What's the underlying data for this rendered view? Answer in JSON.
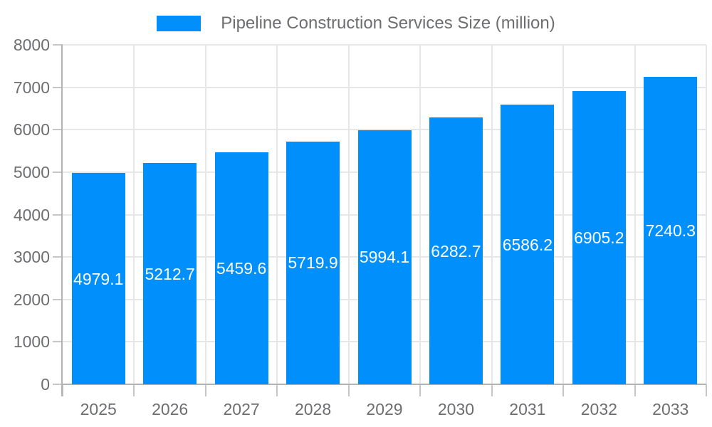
{
  "legend": {
    "label": "Pipeline Construction Services Size (million)"
  },
  "chart_data": {
    "type": "bar",
    "title": "Pipeline Construction Services Size (million)",
    "series_name": "Pipeline Construction Services Size (million)",
    "categories": [
      "2025",
      "2026",
      "2027",
      "2028",
      "2029",
      "2030",
      "2031",
      "2032",
      "2033"
    ],
    "values": [
      4979.1,
      5212.7,
      5459.6,
      5719.9,
      5994.1,
      6282.7,
      6586.2,
      6905.2,
      7240.3
    ],
    "xlabel": "",
    "ylabel": "",
    "ylim": [
      0,
      8000
    ],
    "yticks": [
      0,
      1000,
      2000,
      3000,
      4000,
      5000,
      6000,
      7000,
      8000
    ],
    "grid": true,
    "legend_position": "top",
    "data_labels": "inside-center",
    "colors": {
      "bar": "#008FFB",
      "grid": "#e7e7e7",
      "axis_line": "#b3b3b3",
      "tick": "#c6c6c6",
      "axis_label": "#6d6e70",
      "data_label": "#ffffff"
    }
  }
}
